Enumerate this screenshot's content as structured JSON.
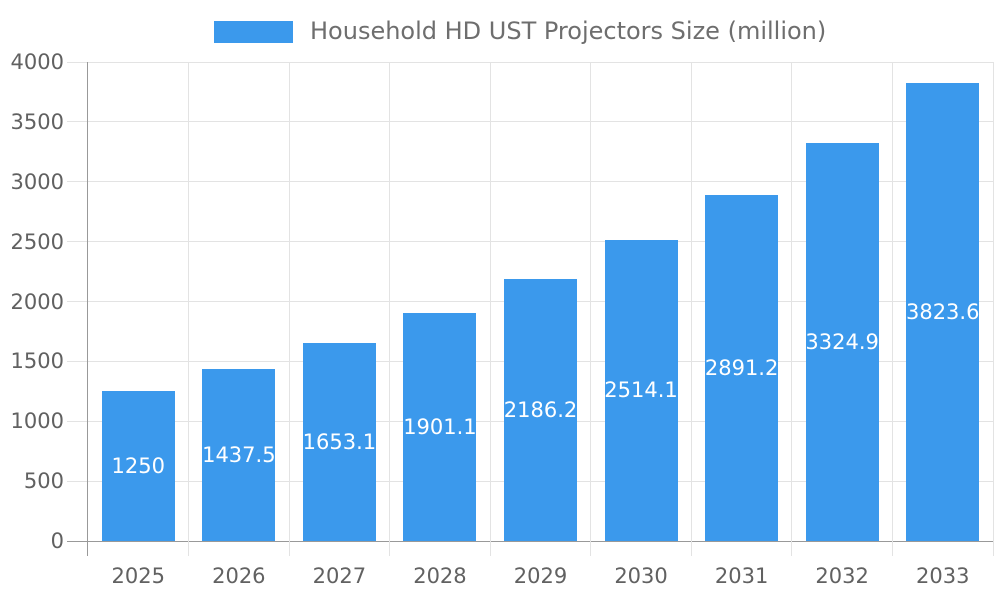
{
  "chart_data": {
    "type": "bar",
    "title": "Household HD UST Projectors Size (million)",
    "legend": {
      "label": "Household HD UST Projectors Size (million)",
      "position": "top"
    },
    "categories": [
      "2025",
      "2026",
      "2027",
      "2028",
      "2029",
      "2030",
      "2031",
      "2032",
      "2033"
    ],
    "series": [
      {
        "name": "Household HD UST Projectors Size (million)",
        "values": [
          1250,
          1437.5,
          1653.1,
          1901.1,
          2186.2,
          2514.1,
          2891.2,
          3324.9,
          3823.6
        ]
      }
    ],
    "value_labels": [
      "1250",
      "1437.5",
      "1653.1",
      "1901.1",
      "2186.2",
      "2514.1",
      "2891.2",
      "3324.9",
      "3823.6"
    ],
    "xlabel": "",
    "ylabel": "",
    "ylim": [
      0,
      4000
    ],
    "ytick_interval": 500,
    "yticks": [
      "0",
      "500",
      "1000",
      "1500",
      "2000",
      "2500",
      "3000",
      "3500",
      "4000"
    ],
    "grid": true,
    "colors": {
      "bar": "#3b99ec",
      "grid": "#e3e3e3",
      "axis": "#999999",
      "axis_text": "#616161",
      "legend_text": "#6e6e6e",
      "value_text": "#ffffff",
      "background": "#ffffff"
    }
  }
}
